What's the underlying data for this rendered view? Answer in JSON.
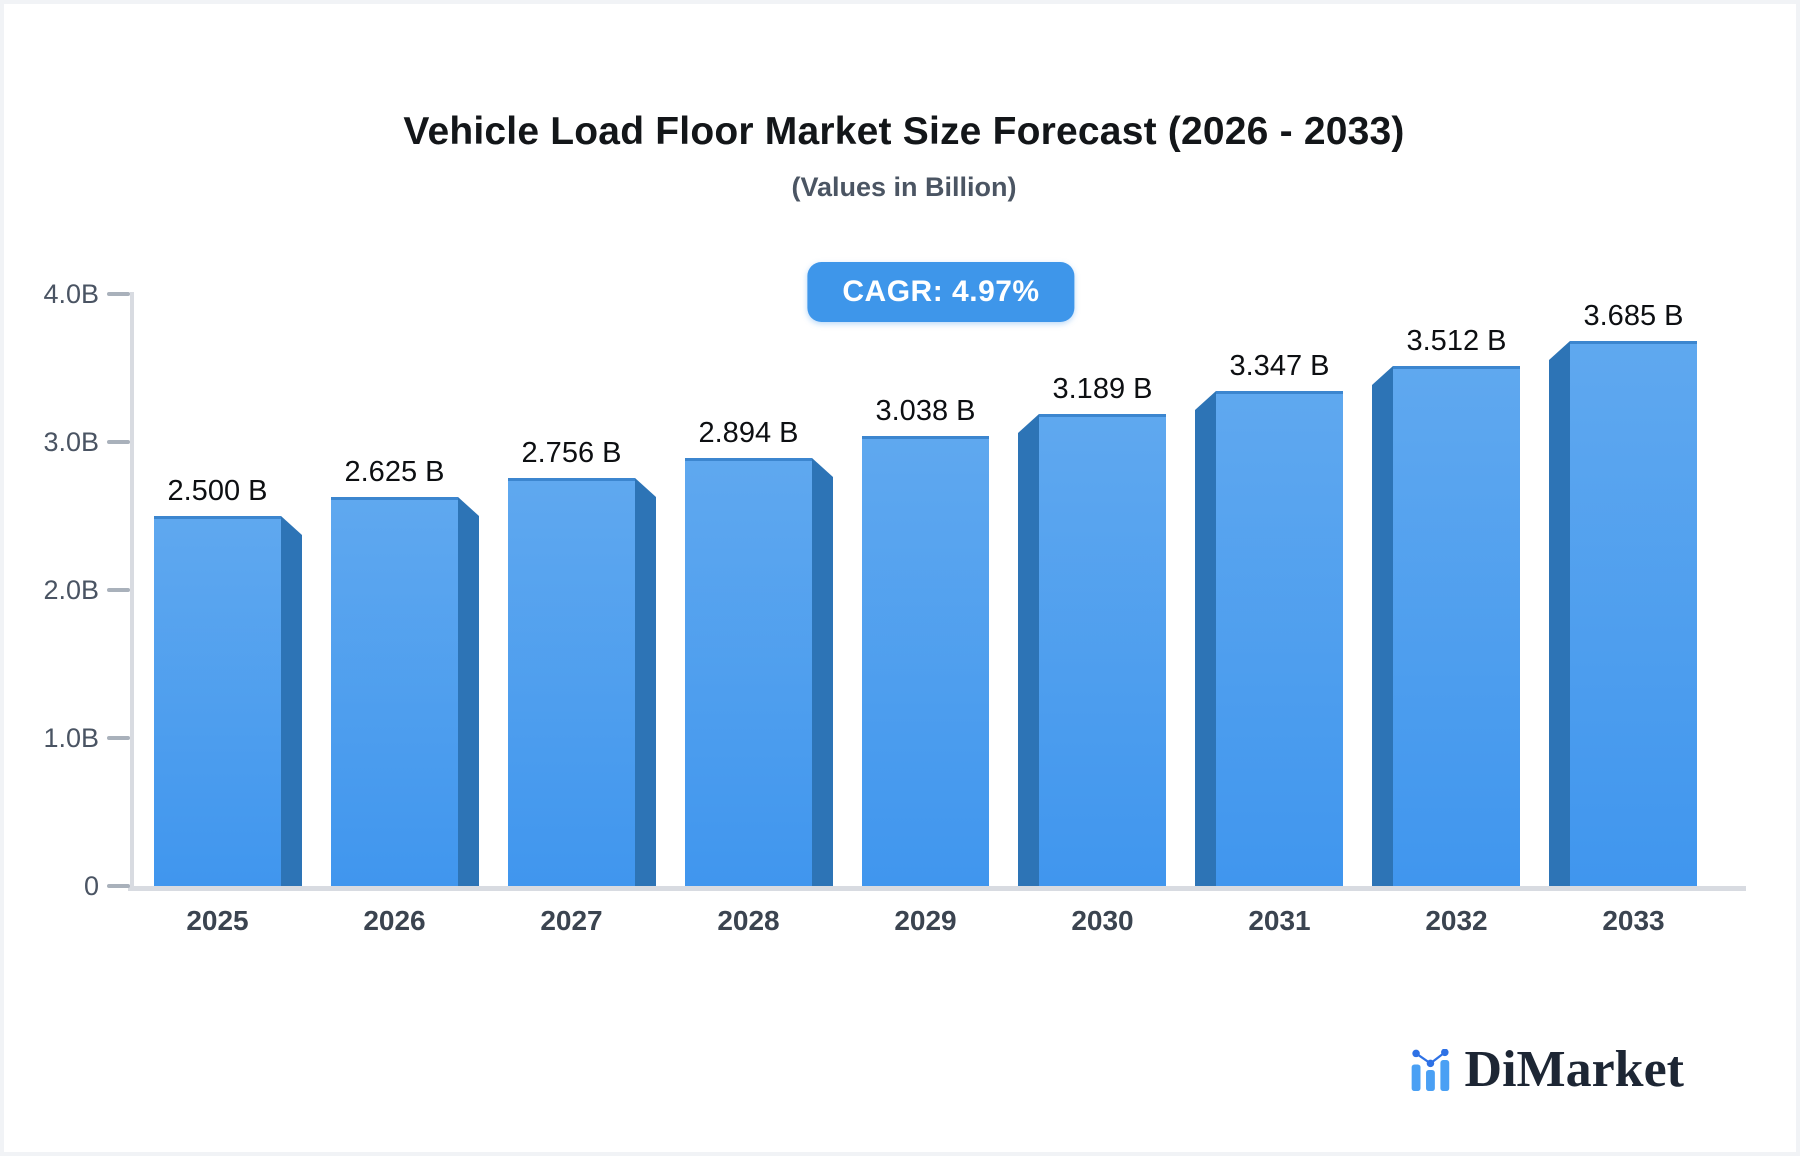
{
  "page": {
    "title": "Vehicle Load Floor Market Size Forecast (2026 - 2033)",
    "subtitle": "(Values in Billion)",
    "cagr_label": "CAGR: 4.97%"
  },
  "chart_data": {
    "type": "bar",
    "title": "Vehicle Load Floor Market Size Forecast (2026 - 2033)",
    "subtitle": "(Values in Billion)",
    "cagr": "4.97%",
    "unit": "Billion",
    "categories": [
      "2025",
      "2026",
      "2027",
      "2028",
      "2029",
      "2030",
      "2031",
      "2032",
      "2033"
    ],
    "values": [
      2.5,
      2.625,
      2.756,
      2.894,
      3.038,
      3.189,
      3.347,
      3.512,
      3.685
    ],
    "value_labels": [
      "2.500 B",
      "2.625 B",
      "2.756 B",
      "2.894 B",
      "3.038 B",
      "3.189 B",
      "3.347 B",
      "3.512 B",
      "3.685 B"
    ],
    "ylim": [
      0,
      4
    ],
    "y_ticks": [
      {
        "value": 0,
        "label": "0"
      },
      {
        "value": 1.0,
        "label": "1.0B"
      },
      {
        "value": 2.0,
        "label": "2.0B"
      },
      {
        "value": 3.0,
        "label": "3.0B"
      },
      {
        "value": 4.0,
        "label": "4.0B"
      }
    ],
    "grid": false,
    "legend": "none",
    "xlabel": "",
    "ylabel": "",
    "style": "pseudo-3d bars, vanishing point at center"
  },
  "colors": {
    "accent": "#3e96ea",
    "bar_face_top": "#5fa8ef",
    "bar_face_bottom": "#4096ee",
    "bar_side": "#2d74b6",
    "bar_top_edge": "#3c86cf",
    "axis_line": "#d8dbe1",
    "tick_dash": "#a9b1bb"
  },
  "branding": {
    "logo_text": "DiMarket",
    "logo_icon": "mini-bar-line-chart-icon"
  }
}
